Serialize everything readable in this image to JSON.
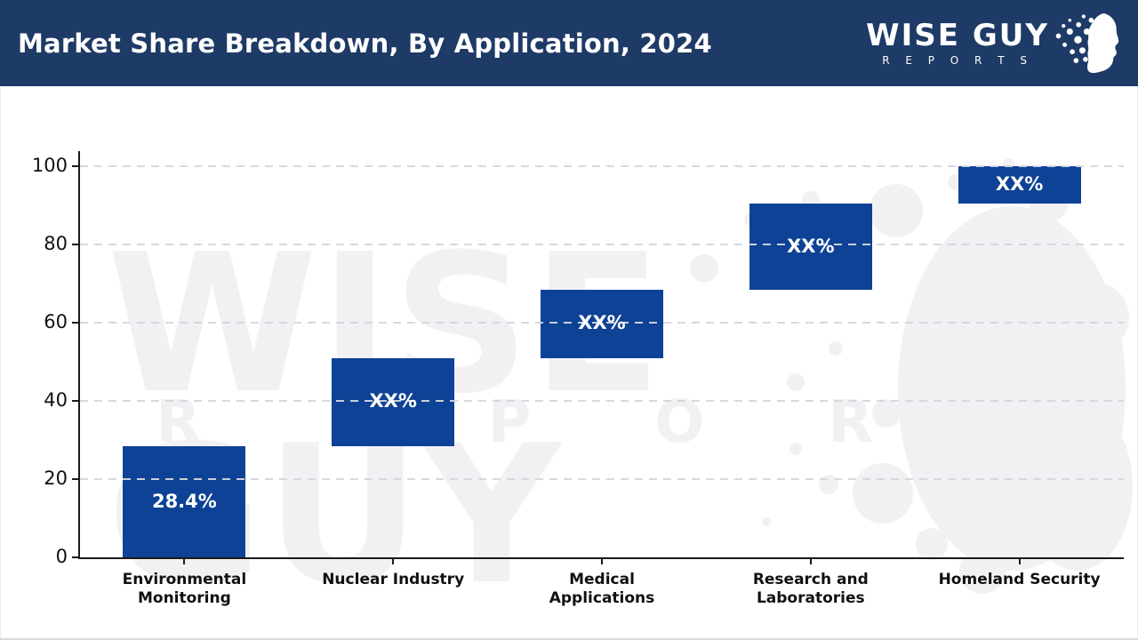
{
  "header": {
    "title": "Market Share Breakdown, By Application, 2024",
    "logo": {
      "line1": "WISE GUY",
      "line2": "R E P O R T S"
    }
  },
  "watermark": {
    "line1": "WISE GUY",
    "line2": "R E P O R T S"
  },
  "colors": {
    "header_bg": "#1e3a66",
    "bar": "#0d4296",
    "bar_label_text": "#ffffff",
    "axis": "#1a1a1a",
    "gridline": "#d5d7dd",
    "watermark": "#f1f1f4"
  },
  "chart_data": {
    "type": "bar",
    "subtype": "waterfall",
    "title": "Market Share Breakdown, By Application, 2024",
    "categories": [
      "Environmental\nMonitoring",
      "Nuclear Industry",
      "Medical\nApplications",
      "Research and\nLaboratories",
      "Homeland Security"
    ],
    "series": [
      {
        "name": "Market Share",
        "segments": [
          {
            "start": 0,
            "end": 28.4,
            "label": "28.4%"
          },
          {
            "start": 28.4,
            "end": 51.0,
            "label": "XX%"
          },
          {
            "start": 51.0,
            "end": 68.4,
            "label": "XX%"
          },
          {
            "start": 68.4,
            "end": 90.4,
            "label": "XX%"
          },
          {
            "start": 90.4,
            "end": 100.0,
            "label": "XX%"
          }
        ]
      }
    ],
    "bar_labels": [
      "28.4%",
      "XX%",
      "XX%",
      "XX%",
      "XX%"
    ],
    "xlabel": "",
    "ylabel": "",
    "ylim": [
      0,
      104
    ],
    "yticks": [
      0,
      20,
      40,
      60,
      80,
      100
    ],
    "grid": "horizontal-dashed",
    "legend": "none"
  }
}
